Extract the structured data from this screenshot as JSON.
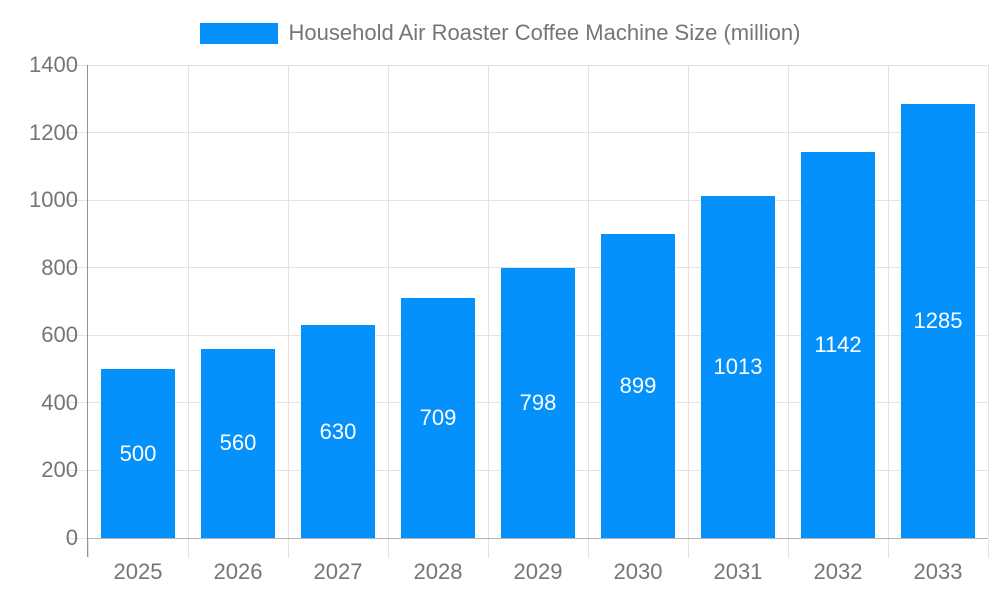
{
  "chart_data": {
    "type": "bar",
    "title": "Household Air Roaster Coffee Machine Size (million)",
    "legend_entries": [
      "Household Air Roaster Coffee Machine Size (million)"
    ],
    "legend_position": "top",
    "categories": [
      "2025",
      "2026",
      "2027",
      "2028",
      "2029",
      "2030",
      "2031",
      "2032",
      "2033"
    ],
    "values": [
      500,
      560,
      630,
      709,
      798,
      899,
      1013,
      1142,
      1285
    ],
    "value_labels": [
      "500",
      "560",
      "630",
      "709",
      "798",
      "899",
      "1013",
      "1142",
      "1285"
    ],
    "xlabel": "",
    "ylabel": "",
    "ylim": [
      0,
      1400
    ],
    "y_ticks": [
      0,
      200,
      400,
      600,
      800,
      1000,
      1200,
      1400
    ],
    "grid": true,
    "colors": {
      "bar": "#0591fb",
      "value_label": "#ffffff",
      "axis_text": "#757575",
      "legend_text": "#757575",
      "y_axis_line": "#919191",
      "x_axis_line": "#b3b3b3",
      "grid_line": "#e3e3e3",
      "tick_line": "#e3e3e3",
      "background": "#ffffff"
    }
  }
}
